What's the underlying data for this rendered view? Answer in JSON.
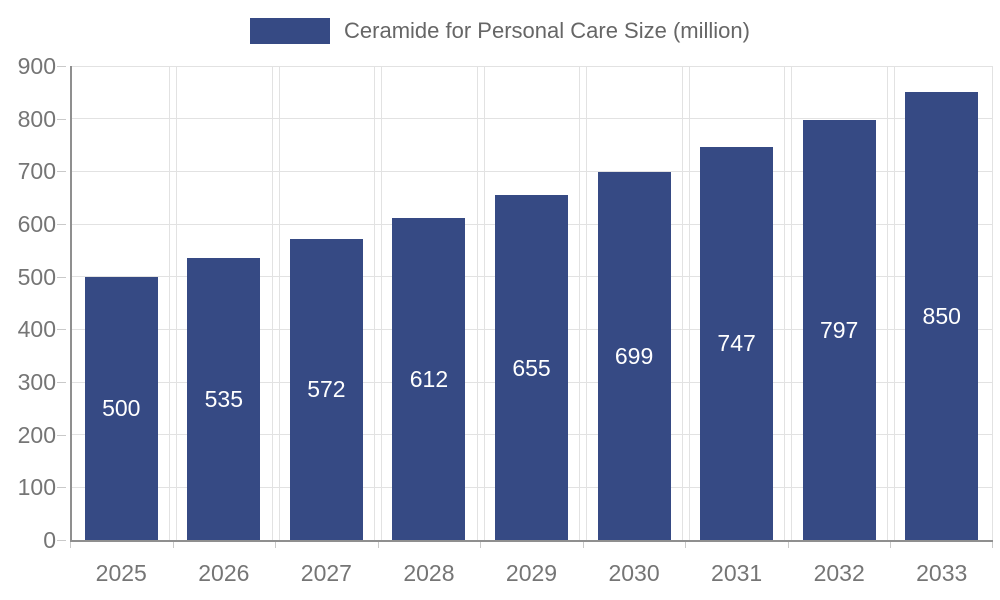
{
  "chart_data": {
    "type": "bar",
    "title": "Ceramide for Personal Care Size (million)",
    "legend": {
      "label": "Ceramide for Personal Care Size (million)",
      "position": "top-center"
    },
    "categories": [
      "2025",
      "2026",
      "2027",
      "2028",
      "2029",
      "2030",
      "2031",
      "2032",
      "2033"
    ],
    "series": [
      {
        "name": "Ceramide for Personal Care Size (million)",
        "values": [
          500,
          535,
          572,
          612,
          655,
          699,
          747,
          797,
          850
        ]
      }
    ],
    "value_labels_shown": true,
    "xlabel": "",
    "ylabel": "",
    "ylim": [
      0,
      900
    ],
    "ytick_step": 100,
    "yticks": [
      0,
      100,
      200,
      300,
      400,
      500,
      600,
      700,
      800,
      900
    ],
    "grid": true,
    "colors": {
      "bar_fill": "#364a84",
      "value_label": "#ffffff",
      "axis_tick_label": "#757575",
      "legend_text": "#666666",
      "gridline": "#e2e2e2",
      "axis_line": "#8f8f8f",
      "tick_mark": "#c9c9c9",
      "background": "#ffffff"
    }
  }
}
